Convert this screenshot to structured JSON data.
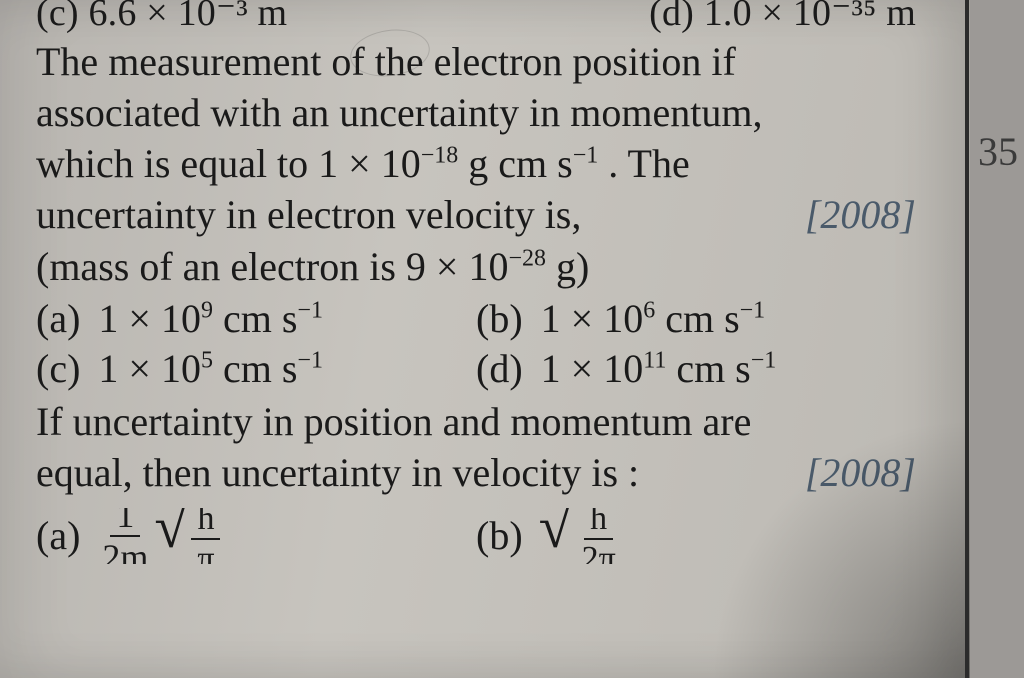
{
  "topline": {
    "left": "(c)  6.6 × 10⁻³ m",
    "right": "(d)  1.0 × 10⁻³⁵ m"
  },
  "q1": {
    "line1": "The measurement of the electron position if",
    "line2": "associated with an uncertainty in momentum,",
    "line3_pre": "which is equal to 1 × 10",
    "line3_exp": "−18",
    "line3_post": " g cm s",
    "line3_exp2": "−1",
    "line3_end": " . The",
    "line4_pre": "uncertainty in electron velocity is,",
    "line5_pre": "(mass of an electron is 9 × 10",
    "line5_exp": "−28",
    "line5_post": " g)",
    "year": "[2008]"
  },
  "opts1": {
    "a": {
      "lab": "(a)",
      "val_pre": "1 × 10",
      "exp": "9",
      "unit": " cm s",
      "exp2": "−1"
    },
    "b": {
      "lab": "(b)",
      "val_pre": "1 × 10",
      "exp": "6",
      "unit": " cm s",
      "exp2": "−1"
    },
    "c": {
      "lab": "(c)",
      "val_pre": "1 × 10",
      "exp": "5",
      "unit": " cm s",
      "exp2": "−1"
    },
    "d": {
      "lab": "(d)",
      "val_pre": "1 × 10",
      "exp": "11",
      "unit": " cm s",
      "exp2": "−1"
    }
  },
  "q2": {
    "line1": "If uncertainty in position and momentum are",
    "line2_pre": "equal, then uncertainty in velocity is :",
    "year": "[2008]"
  },
  "opts2": {
    "a": {
      "lab": "(a)",
      "coef_num": "1",
      "coef_den": "2m",
      "rad_num": "h",
      "rad_den": "π"
    },
    "b": {
      "lab": "(b)",
      "rad_num": "h",
      "rad_den": "2π"
    }
  },
  "margin_num": "35"
}
